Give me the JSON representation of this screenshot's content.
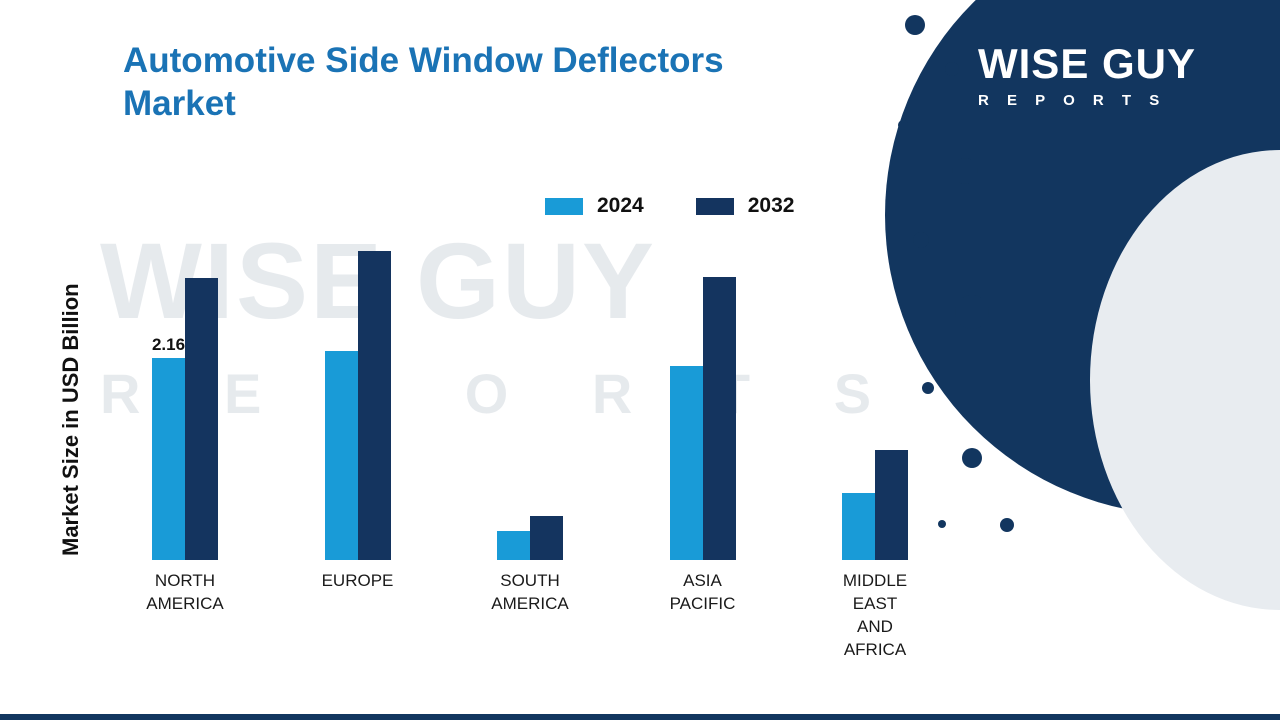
{
  "header": {
    "title": "Automotive Side Window Deflectors Market"
  },
  "logo": {
    "name_line": "WISE GUY",
    "reports_line": "R E P O R T S"
  },
  "watermark": {
    "line1": "WISE GUY",
    "line2": "R E P O R T S"
  },
  "chart": {
    "ylabel": "Market Size in USD Billion"
  },
  "legend": {
    "items": [
      {
        "label": "2024",
        "color": "#199bd7"
      },
      {
        "label": "2032",
        "color": "#14345f"
      }
    ]
  },
  "colors": {
    "title_blue": "#1a73b5",
    "bar_2024": "#199bd7",
    "bar_2032": "#14345f",
    "brand_navy": "#12365f"
  },
  "chart_data": {
    "type": "bar",
    "title": "Automotive Side Window Deflectors Market",
    "xlabel": "",
    "ylabel": "Market Size in USD Billion",
    "ylim": [
      0,
      3.5
    ],
    "grid": false,
    "axes_visible": false,
    "legend_position": "top",
    "categories": [
      "NORTH AMERICA",
      "EUROPE",
      "SOUTH AMERICA",
      "ASIA PACIFIC",
      "MIDDLE EAST AND AFRICA"
    ],
    "category_label_lines": [
      "NORTH\nAMERICA",
      "EUROPE",
      "SOUTH\nAMERICA",
      "ASIA\nPACIFIC",
      "MIDDLE\nEAST\nAND\nAFRICA"
    ],
    "series": [
      {
        "name": "2024",
        "color": "#199bd7",
        "values": [
          2.16,
          2.24,
          0.31,
          2.08,
          0.72
        ]
      },
      {
        "name": "2032",
        "color": "#14345f",
        "values": [
          3.02,
          3.3,
          0.47,
          3.03,
          1.18
        ]
      }
    ],
    "annotations": [
      {
        "series_index": 0,
        "category_index": 0,
        "text": "2.16"
      }
    ]
  }
}
